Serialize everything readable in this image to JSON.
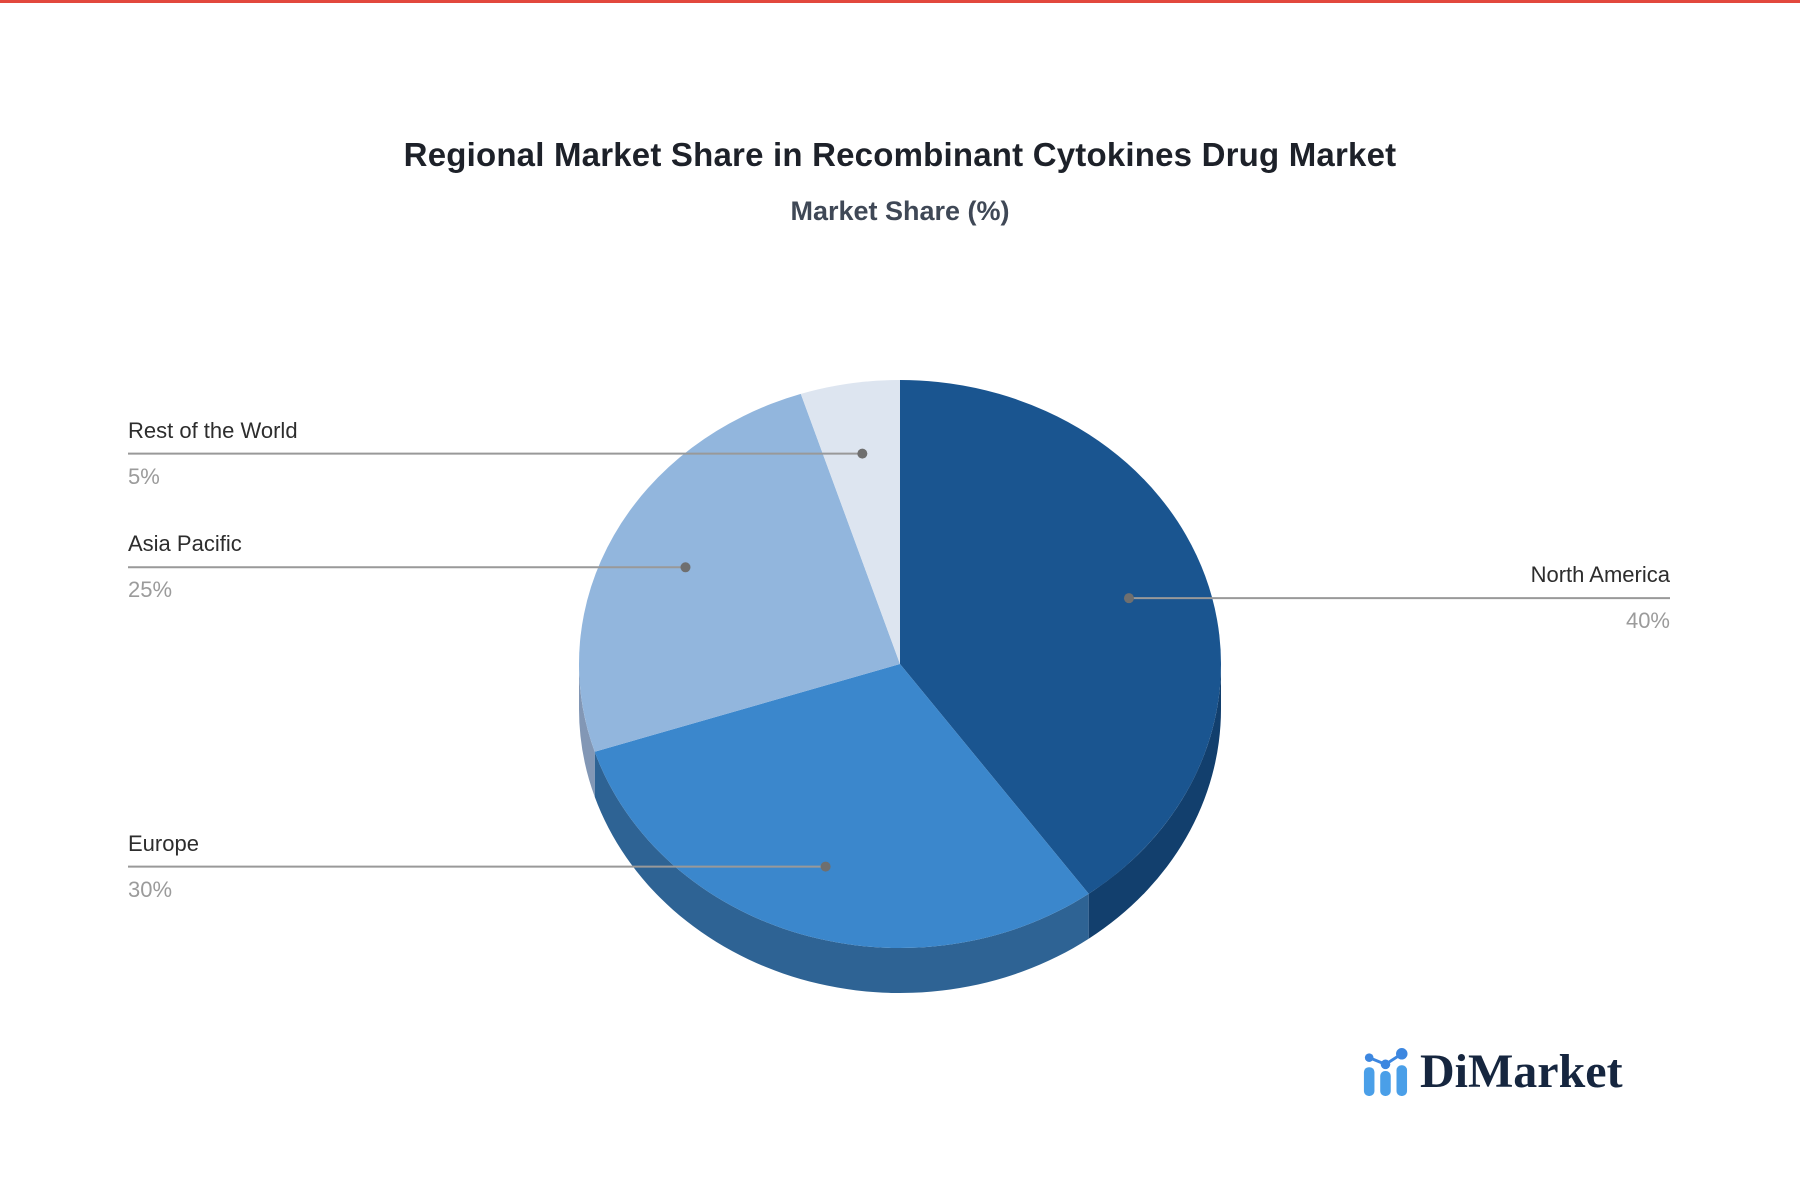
{
  "page": {
    "background": "#ffffff",
    "top_edge_color": "#e2483d"
  },
  "chart_data": {
    "type": "pie",
    "style": "3d-pie",
    "title": "Regional Market Share in Recombinant Cytokines Drug Market",
    "subtitle": "Market Share (%)",
    "unit": "%",
    "start_angle": "top",
    "direction": "clockwise",
    "legend_position": "none",
    "labels_format": "name above leader line, percent below line",
    "slices": [
      {
        "label": "North America",
        "value": 40,
        "pct_text": "40%",
        "color": "#1a5590",
        "side_color": "#123f6d",
        "label_side": "right"
      },
      {
        "label": "Europe",
        "value": 30,
        "pct_text": "30%",
        "color": "#3b87cc",
        "side_color": "#2e6394",
        "label_side": "left"
      },
      {
        "label": "Asia Pacific",
        "value": 25,
        "pct_text": "25%",
        "color": "#92b6dd",
        "side_color": "#8297b5",
        "label_side": "left"
      },
      {
        "label": "Rest of the World",
        "value": 5,
        "pct_text": "5%",
        "color": "#dde5f0",
        "side_color": "#c9d4e5",
        "label_side": "left"
      }
    ]
  },
  "branding": {
    "logo_text": "DiMarket",
    "icon": "bar-line-chart-icon",
    "text_color": "#16263f",
    "icon_bar_color": "#4a9fe8",
    "icon_dot_color": "#3d87e0"
  },
  "style_colors": {
    "leader_line": "#999999",
    "leader_dot": "#6f6f6f",
    "label_color": "#2d2d2d",
    "pct_color": "#9b9b9b",
    "title_color": "#1d2129",
    "subtitle_color": "#3f4856"
  }
}
